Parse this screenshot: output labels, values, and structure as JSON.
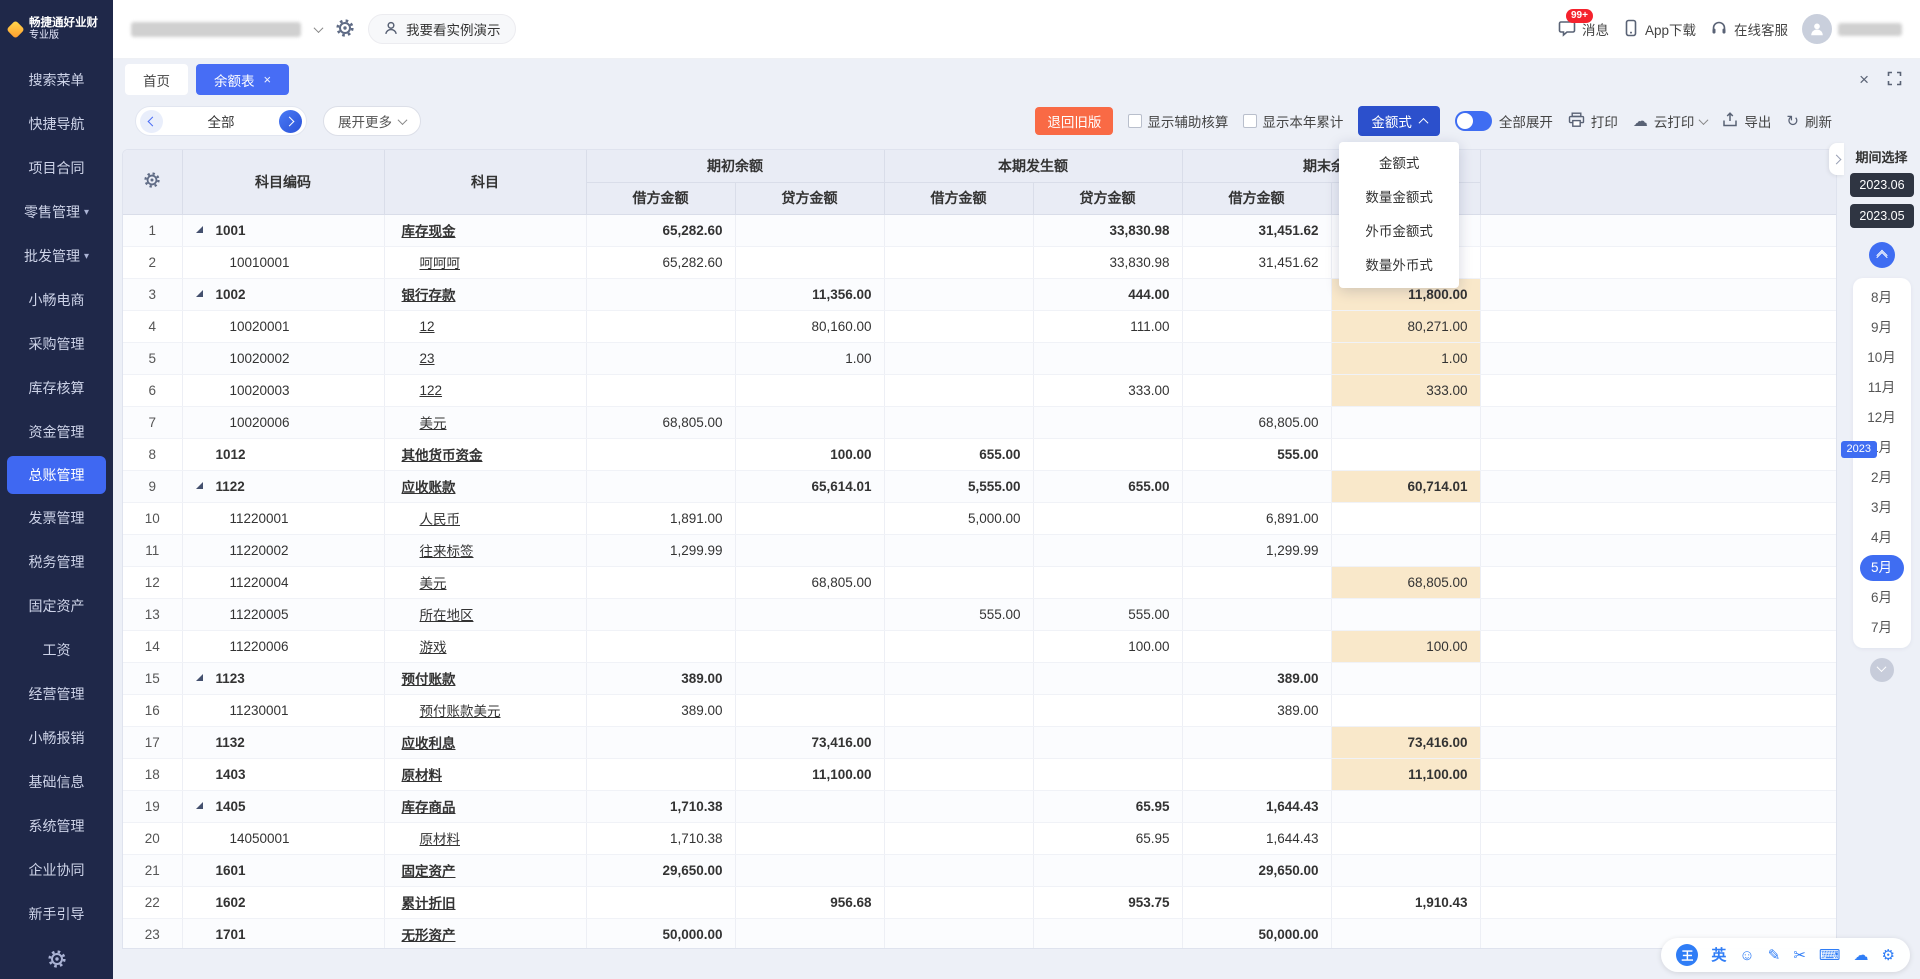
{
  "app": {
    "title": "畅捷通好业财",
    "edition": "专业版"
  },
  "topbar": {
    "demo": "我要看实例演示",
    "messages": "消息",
    "badge": "99+",
    "download": "App下载",
    "service": "在线客服"
  },
  "tabs": {
    "home": "首页",
    "balance": "余额表"
  },
  "toolbar": {
    "filter": "全部",
    "expand_more": "展开更多",
    "back_old": "退回旧版",
    "cb_aux": "显示辅助核算",
    "cb_ytd": "显示本年累计",
    "format": "金额式",
    "expand_all": "全部展开",
    "print": "打印",
    "cloud_print": "云打印",
    "export": "导出",
    "refresh": "刷新"
  },
  "format_menu": {
    "items": [
      "金额式",
      "数量金额式",
      "外币金额式",
      "数量外币式"
    ]
  },
  "sidebar": {
    "items": [
      {
        "label": "搜索菜单"
      },
      {
        "label": "快捷导航"
      },
      {
        "label": "项目合同"
      },
      {
        "label": "零售管理",
        "caret": true
      },
      {
        "label": "批发管理",
        "caret": true
      },
      {
        "label": "小畅电商"
      },
      {
        "label": "采购管理"
      },
      {
        "label": "库存核算"
      },
      {
        "label": "资金管理"
      },
      {
        "label": "总账管理",
        "active": true
      },
      {
        "label": "发票管理"
      },
      {
        "label": "税务管理"
      },
      {
        "label": "固定资产"
      },
      {
        "label": "工资"
      },
      {
        "label": "经营管理"
      },
      {
        "label": "小畅报销"
      },
      {
        "label": "基础信息"
      },
      {
        "label": "系统管理"
      },
      {
        "label": "企业协同"
      },
      {
        "label": "新手引导"
      }
    ]
  },
  "table": {
    "headers": {
      "code": "科目编码",
      "name": "科目",
      "opening": "期初余额",
      "current": "本期发生额",
      "closing": "期末余额",
      "debit": "借方金额",
      "credit": "贷方金额"
    },
    "rows": [
      {
        "num": 1,
        "code": "1001",
        "name": "库存现金",
        "exp": true,
        "bold": true,
        "c": [
          "65,282.60",
          "",
          "",
          "33,830.98",
          "31,451.62",
          ""
        ]
      },
      {
        "num": 2,
        "code": "10010001",
        "name": "呵呵呵",
        "child": true,
        "c": [
          "65,282.60",
          "",
          "",
          "33,830.98",
          "31,451.62",
          ""
        ]
      },
      {
        "num": 3,
        "code": "1002",
        "name": "银行存款",
        "exp": true,
        "bold": true,
        "c": [
          "",
          "11,356.00",
          "",
          "444.00",
          "",
          "11,800.00"
        ],
        "hl": [
          5
        ]
      },
      {
        "num": 4,
        "code": "10020001",
        "name": "12",
        "child": true,
        "c": [
          "",
          "80,160.00",
          "",
          "111.00",
          "",
          "80,271.00"
        ],
        "hl": [
          5
        ]
      },
      {
        "num": 5,
        "code": "10020002",
        "name": "23",
        "child": true,
        "c": [
          "",
          "1.00",
          "",
          "",
          "",
          "1.00"
        ],
        "hl": [
          5
        ]
      },
      {
        "num": 6,
        "code": "10020003",
        "name": "122",
        "child": true,
        "c": [
          "",
          "",
          "",
          "333.00",
          "",
          "333.00"
        ],
        "hl": [
          5
        ]
      },
      {
        "num": 7,
        "code": "10020006",
        "name": "美元",
        "child": true,
        "c": [
          "68,805.00",
          "",
          "",
          "",
          "68,805.00",
          ""
        ]
      },
      {
        "num": 8,
        "code": "1012",
        "name": "其他货币资金",
        "bold": true,
        "c": [
          "",
          "100.00",
          "655.00",
          "",
          "555.00",
          ""
        ]
      },
      {
        "num": 9,
        "code": "1122",
        "name": "应收账款",
        "exp": true,
        "bold": true,
        "c": [
          "",
          "65,614.01",
          "5,555.00",
          "655.00",
          "",
          "60,714.01"
        ],
        "hl": [
          5
        ]
      },
      {
        "num": 10,
        "code": "11220001",
        "name": "人民币",
        "child": true,
        "c": [
          "1,891.00",
          "",
          "5,000.00",
          "",
          "6,891.00",
          ""
        ]
      },
      {
        "num": 11,
        "code": "11220002",
        "name": "往来标签",
        "child": true,
        "c": [
          "1,299.99",
          "",
          "",
          "",
          "1,299.99",
          ""
        ]
      },
      {
        "num": 12,
        "code": "11220004",
        "name": "美元",
        "child": true,
        "c": [
          "",
          "68,805.00",
          "",
          "",
          "",
          "68,805.00"
        ],
        "hl": [
          5
        ]
      },
      {
        "num": 13,
        "code": "11220005",
        "name": "所在地区",
        "child": true,
        "c": [
          "",
          "",
          "555.00",
          "555.00",
          "",
          ""
        ]
      },
      {
        "num": 14,
        "code": "11220006",
        "name": "游戏",
        "child": true,
        "c": [
          "",
          "",
          "",
          "100.00",
          "",
          "100.00"
        ],
        "hl": [
          5
        ]
      },
      {
        "num": 15,
        "code": "1123",
        "name": "预付账款",
        "exp": true,
        "bold": true,
        "c": [
          "389.00",
          "",
          "",
          "",
          "389.00",
          ""
        ]
      },
      {
        "num": 16,
        "code": "11230001",
        "name": "预付账款美元",
        "child": true,
        "c": [
          "389.00",
          "",
          "",
          "",
          "389.00",
          ""
        ]
      },
      {
        "num": 17,
        "code": "1132",
        "name": "应收利息",
        "bold": true,
        "c": [
          "",
          "73,416.00",
          "",
          "",
          "",
          "73,416.00"
        ],
        "hl": [
          5
        ]
      },
      {
        "num": 18,
        "code": "1403",
        "name": "原材料",
        "bold": true,
        "c": [
          "",
          "11,100.00",
          "",
          "",
          "",
          "11,100.00"
        ],
        "hl": [
          5
        ]
      },
      {
        "num": 19,
        "code": "1405",
        "name": "库存商品",
        "exp": true,
        "bold": true,
        "c": [
          "1,710.38",
          "",
          "",
          "65.95",
          "1,644.43",
          ""
        ]
      },
      {
        "num": 20,
        "code": "14050001",
        "name": "原材料",
        "child": true,
        "c": [
          "1,710.38",
          "",
          "",
          "65.95",
          "1,644.43",
          ""
        ]
      },
      {
        "num": 21,
        "code": "1601",
        "name": "固定资产",
        "bold": true,
        "c": [
          "29,650.00",
          "",
          "",
          "",
          "29,650.00",
          ""
        ]
      },
      {
        "num": 22,
        "code": "1602",
        "name": "累计折旧",
        "bold": true,
        "c": [
          "",
          "956.68",
          "",
          "953.75",
          "",
          "1,910.43"
        ]
      },
      {
        "num": 23,
        "code": "1701",
        "name": "无形资产",
        "bold": true,
        "c": [
          "50,000.00",
          "",
          "",
          "",
          "50,000.00",
          ""
        ]
      }
    ]
  },
  "period": {
    "title": "期间选择",
    "dates": [
      "2023.06",
      "2023.05"
    ],
    "year": "2023",
    "months": [
      "8月",
      "9月",
      "10月",
      "11月",
      "12月",
      "1月",
      "2月",
      "3月",
      "4月",
      "5月",
      "6月",
      "7月"
    ],
    "active": "5月"
  },
  "glyphs": {
    "caret_down": "▾",
    "close": "×",
    "refresh": "↻",
    "cloud": "☁"
  },
  "ime": {
    "items": [
      {
        "name": "ime-logo",
        "glyph": "王",
        "logo": true
      },
      {
        "name": "ime-lang-indicator",
        "glyph": "英"
      },
      {
        "name": "smiley-icon",
        "glyph": "☺"
      },
      {
        "name": "pen-icon",
        "glyph": "✎"
      },
      {
        "name": "scissors-icon",
        "glyph": "✂"
      },
      {
        "name": "keyboard-icon",
        "glyph": "⌨"
      },
      {
        "name": "cloud-icon",
        "glyph": "☁"
      },
      {
        "name": "settings-gear-icon",
        "glyph": "⚙"
      }
    ]
  }
}
